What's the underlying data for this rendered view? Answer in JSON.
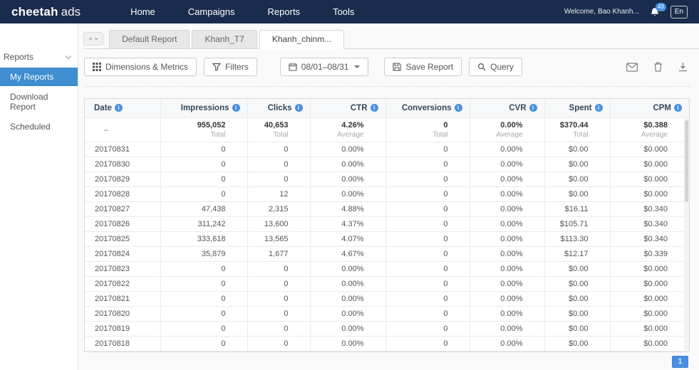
{
  "colors": {
    "nav_bg": "#1a2c4e",
    "accent_blue": "#4a90e2",
    "sidebar_active_bg": "#3e8ed0",
    "header_text": "#33475b"
  },
  "topnav": {
    "brand_bold": "cheetah",
    "brand_light": "ads",
    "items": [
      "Home",
      "Campaigns",
      "Reports",
      "Tools"
    ],
    "welcome": "Welcome,",
    "username": "Bao Khanh...",
    "notification_count": "43",
    "lang": "En"
  },
  "sidebar": {
    "section": "Reports",
    "items": [
      {
        "label": "My Reports",
        "active": true
      },
      {
        "label": "Download Report",
        "active": false
      },
      {
        "label": "Scheduled",
        "active": false
      }
    ]
  },
  "tabs": [
    {
      "label": "Default Report",
      "active": false
    },
    {
      "label": "Khanh_T7",
      "active": false
    },
    {
      "label": "Khanh_chinm...",
      "active": true
    }
  ],
  "toolbar": {
    "dimensions_metrics": "Dimensions & Metrics",
    "filters": "Filters",
    "date_range": "08/01–08/31",
    "save_report": "Save Report",
    "query": "Query"
  },
  "table": {
    "columns": [
      "Date",
      "Impressions",
      "Clicks",
      "CTR",
      "Conversions",
      "CVR",
      "Spent",
      "CPM"
    ],
    "totals": {
      "date": "–",
      "values": [
        "955,052",
        "40,653",
        "4.26%",
        "0",
        "0.00%",
        "$370.44",
        "$0.388"
      ],
      "sublabels": [
        "Total",
        "Total",
        "Average",
        "Total",
        "Average",
        "Total",
        "Average"
      ]
    },
    "rows": [
      [
        "20170831",
        "0",
        "0",
        "0.00%",
        "0",
        "0.00%",
        "$0.00",
        "$0.000"
      ],
      [
        "20170830",
        "0",
        "0",
        "0.00%",
        "0",
        "0.00%",
        "$0.00",
        "$0.000"
      ],
      [
        "20170829",
        "0",
        "0",
        "0.00%",
        "0",
        "0.00%",
        "$0.00",
        "$0.000"
      ],
      [
        "20170828",
        "0",
        "12",
        "0.00%",
        "0",
        "0.00%",
        "$0.00",
        "$0.000"
      ],
      [
        "20170827",
        "47,438",
        "2,315",
        "4.88%",
        "0",
        "0.00%",
        "$16.11",
        "$0.340"
      ],
      [
        "20170826",
        "311,242",
        "13,600",
        "4.37%",
        "0",
        "0.00%",
        "$105.71",
        "$0.340"
      ],
      [
        "20170825",
        "333,618",
        "13,565",
        "4.07%",
        "0",
        "0.00%",
        "$113.30",
        "$0.340"
      ],
      [
        "20170824",
        "35,879",
        "1,677",
        "4.67%",
        "0",
        "0.00%",
        "$12.17",
        "$0.339"
      ],
      [
        "20170823",
        "0",
        "0",
        "0.00%",
        "0",
        "0.00%",
        "$0.00",
        "$0.000"
      ],
      [
        "20170822",
        "0",
        "0",
        "0.00%",
        "0",
        "0.00%",
        "$0.00",
        "$0.000"
      ],
      [
        "20170821",
        "0",
        "0",
        "0.00%",
        "0",
        "0.00%",
        "$0.00",
        "$0.000"
      ],
      [
        "20170820",
        "0",
        "0",
        "0.00%",
        "0",
        "0.00%",
        "$0.00",
        "$0.000"
      ],
      [
        "20170819",
        "0",
        "0",
        "0.00%",
        "0",
        "0.00%",
        "$0.00",
        "$0.000"
      ],
      [
        "20170818",
        "0",
        "0",
        "0.00%",
        "0",
        "0.00%",
        "$0.00",
        "$0.000"
      ]
    ]
  },
  "pagination": {
    "current": "1"
  }
}
